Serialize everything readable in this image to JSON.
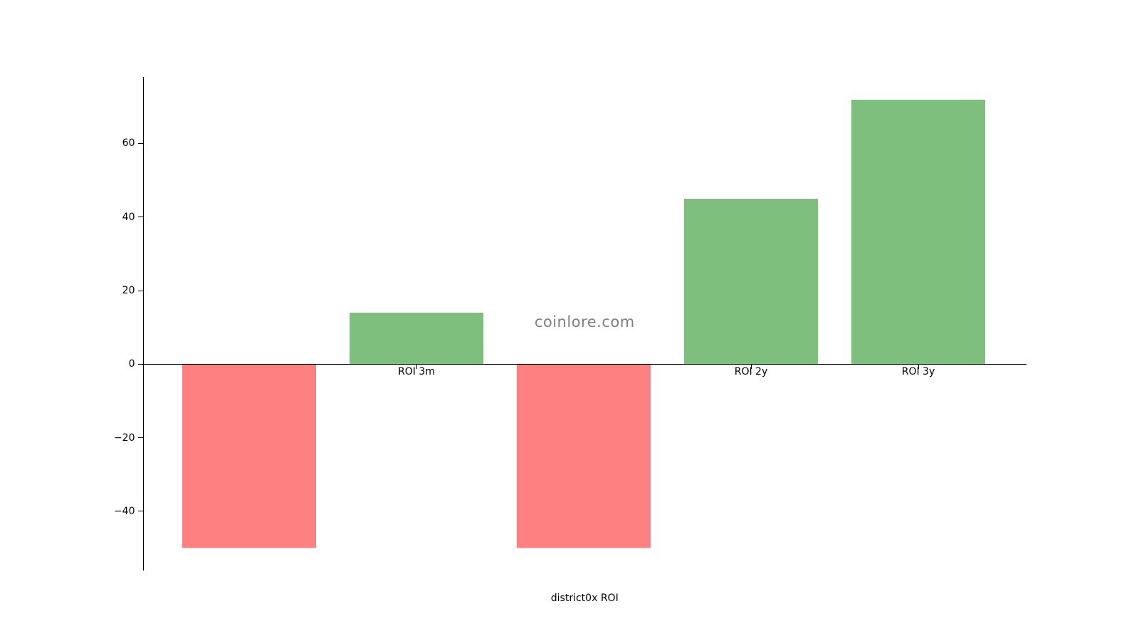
{
  "chart_data": {
    "type": "bar",
    "title": "",
    "xlabel": "district0x ROI",
    "ylabel": "",
    "watermark": "coinlore.com",
    "categories": [
      "",
      "ROI 3m",
      "",
      "ROI 2y",
      "ROI 3y"
    ],
    "values": [
      -50,
      14,
      -50,
      45,
      72
    ],
    "bar_colors": [
      "#ff8080",
      "#7ebf7e",
      "#ff8080",
      "#7ebf7e",
      "#7ebf7e"
    ],
    "positive_color": "#7ebf7e",
    "negative_color": "#ff8080",
    "yticks": [
      60,
      40,
      20,
      0,
      -20,
      -40
    ],
    "ytick_labels": [
      "60",
      "40",
      "20",
      "0",
      "−20",
      "−40"
    ],
    "ylim": [
      -56.1,
      78.1
    ],
    "axis_color": "#000000",
    "tick_label_color": "#000000",
    "watermark_color": "#808080",
    "grid": false,
    "legend_position": "none"
  }
}
